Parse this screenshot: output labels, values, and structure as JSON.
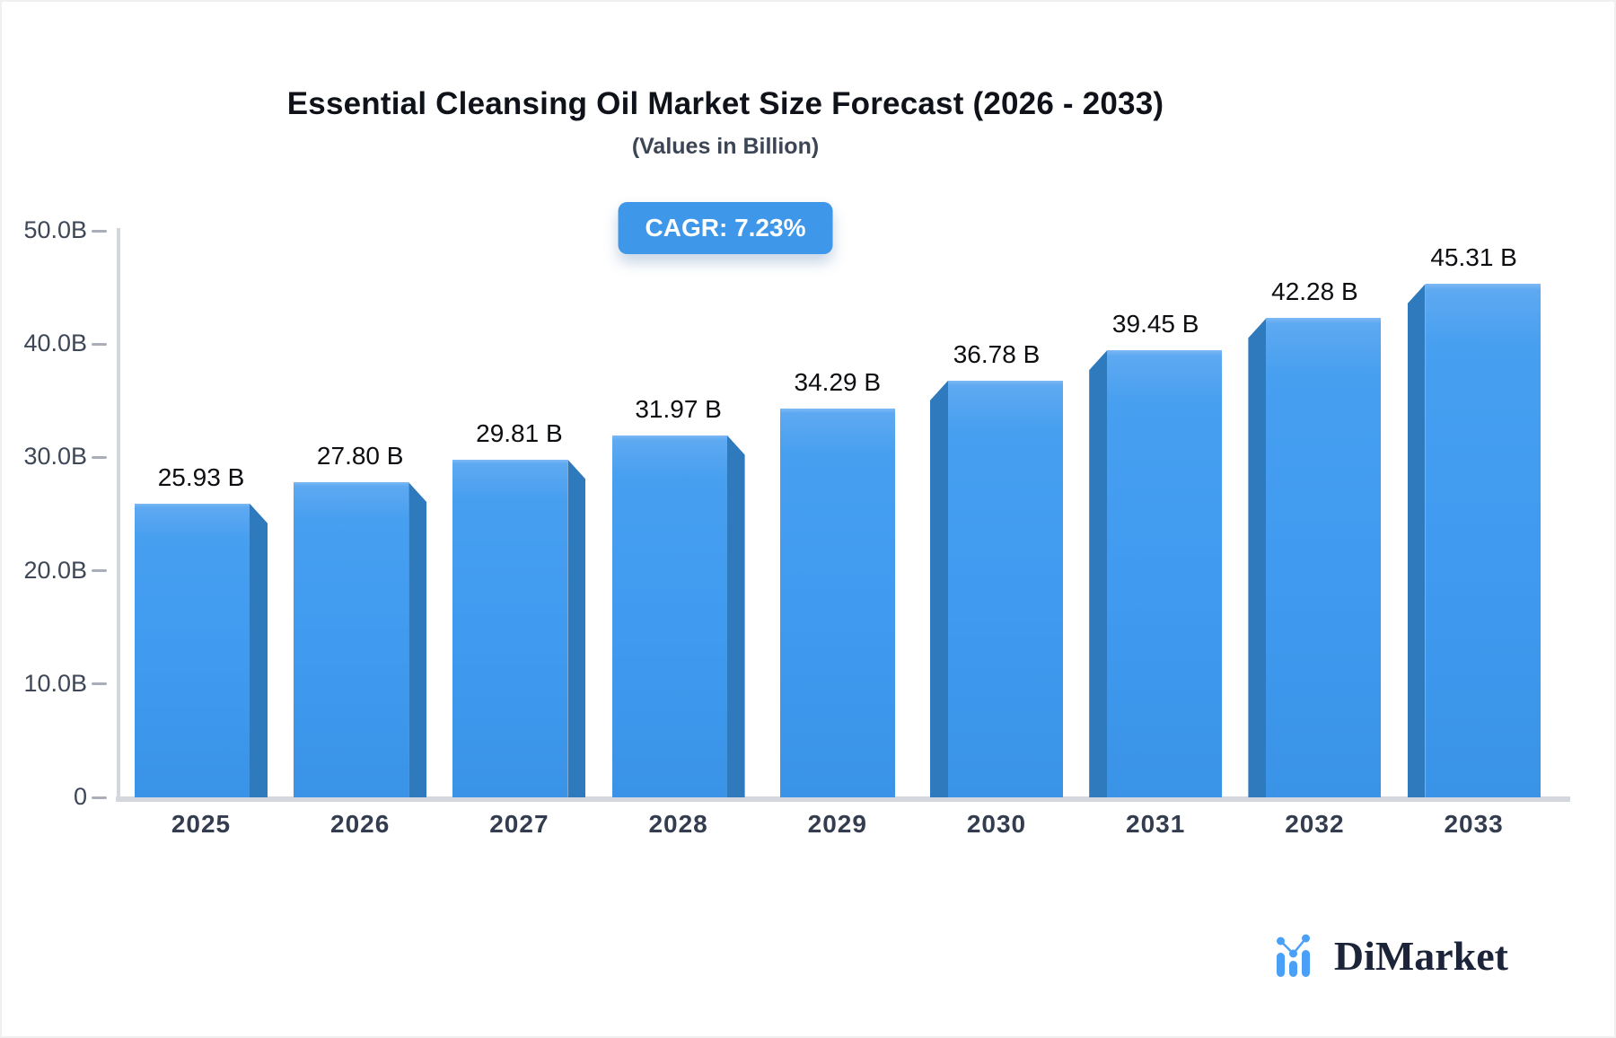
{
  "header": {
    "title": "Essential Cleansing Oil Market Size Forecast (2026 - 2033)",
    "subtitle": "(Values in Billion)",
    "cagr_badge": "CAGR: 7.23%"
  },
  "chart_data": {
    "type": "bar",
    "title": "Essential Cleansing Oil Market Size Forecast (2026 - 2033)",
    "subtitle": "(Values in Billion)",
    "xlabel": "",
    "ylabel": "",
    "unit": "Billion",
    "cagr_percent": 7.23,
    "categories": [
      "2025",
      "2026",
      "2027",
      "2028",
      "2029",
      "2030",
      "2031",
      "2032",
      "2033"
    ],
    "values": [
      25.93,
      27.8,
      29.81,
      31.97,
      34.29,
      36.78,
      39.45,
      42.28,
      45.31
    ],
    "value_labels": [
      "25.93 B",
      "27.80 B",
      "29.81 B",
      "31.97 B",
      "34.29 B",
      "36.78 B",
      "39.45 B",
      "42.28 B",
      "45.31 B"
    ],
    "ylim": [
      0,
      50
    ],
    "yticks": [
      {
        "label": "50.0B",
        "v": 50
      },
      {
        "label": "40.0B",
        "v": 40
      },
      {
        "label": "30.0B",
        "v": 30
      },
      {
        "label": "20.0B",
        "v": 20
      },
      {
        "label": "10.0B",
        "v": 10
      },
      {
        "label": "0",
        "v": 0
      }
    ],
    "grid": false,
    "legend": "none",
    "bar_style_3d": true
  },
  "colors": {
    "badge_bg": "#3f97e9",
    "bar_face_top": "#5ea9f1",
    "bar_face_bottom": "#3a93e6",
    "bar_side": "#2e7abc",
    "axis_line": "#d3d6dc",
    "tick_text": "#3d4757",
    "x_label_text": "#333d4f",
    "logo_blue": "#4aa0f6",
    "logo_navy": "#1b2438"
  },
  "logo": {
    "text": "DiMarket",
    "icon": "mini-bar-line-chart-icon"
  }
}
